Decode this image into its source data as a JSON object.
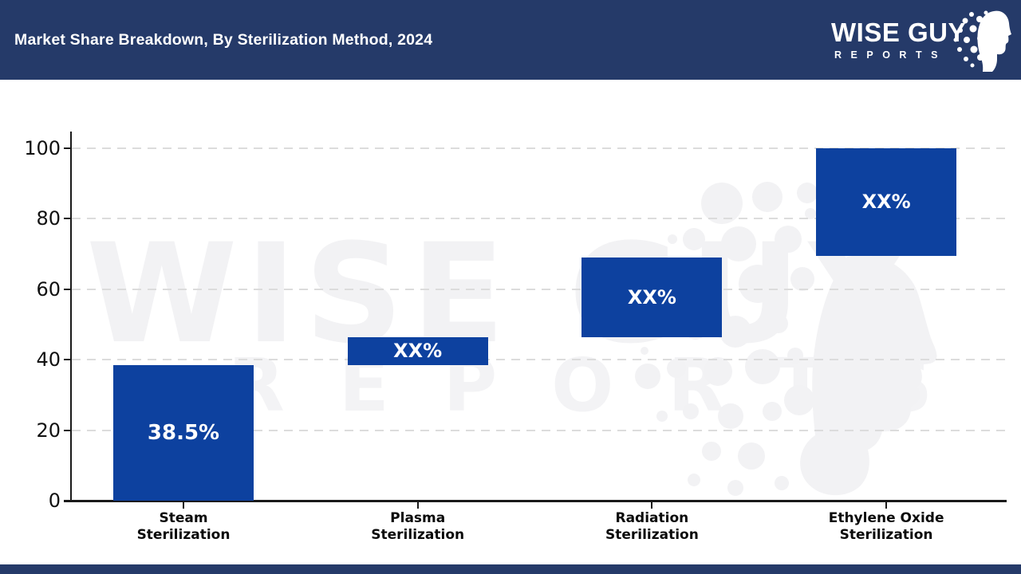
{
  "header": {
    "title": "Market Share Breakdown, By Sterilization Method, 2024",
    "logo": {
      "name": "WISE GUY",
      "tagline": "REPORTS"
    }
  },
  "watermark": {
    "name": "WISE GUY",
    "tagline": "REPORTS"
  },
  "chart_data": {
    "type": "bar",
    "subtype": "floating-waterfall",
    "title": "Market Share Breakdown, By Sterilization Method, 2024",
    "categories": [
      {
        "lines": [
          "Steam",
          "Sterilization"
        ]
      },
      {
        "lines": [
          "Plasma",
          "Sterilization"
        ]
      },
      {
        "lines": [
          "Radiation",
          "Sterilization"
        ]
      },
      {
        "lines": [
          "Ethylene Oxide",
          "Sterilization"
        ]
      }
    ],
    "segments": [
      {
        "category": "Steam Sterilization",
        "start": 0,
        "end": 38.5,
        "label": "38.5%"
      },
      {
        "category": "Plasma Sterilization",
        "start": 38.5,
        "end": 46.4,
        "label": "XX%"
      },
      {
        "category": "Radiation Sterilization",
        "start": 46.4,
        "end": 69.0,
        "label": "XX%"
      },
      {
        "category": "Ethylene Oxide Sterilization",
        "start": 69.5,
        "end": 100.0,
        "label": "XX%"
      }
    ],
    "xlabel": "",
    "ylabel": "",
    "yticks": [
      0,
      20,
      40,
      60,
      80,
      100
    ],
    "ylim": [
      0,
      105
    ],
    "grid": "horizontal-dashed",
    "legend": "none",
    "colors": {
      "bar": "#0d419f",
      "header_band": "#253a69",
      "footer_band": "#253a69",
      "gridline": "#dcdcdc",
      "axis": "#1a1a1a",
      "bar_label": "#ffffff",
      "watermark": "#f2f2f4"
    }
  }
}
